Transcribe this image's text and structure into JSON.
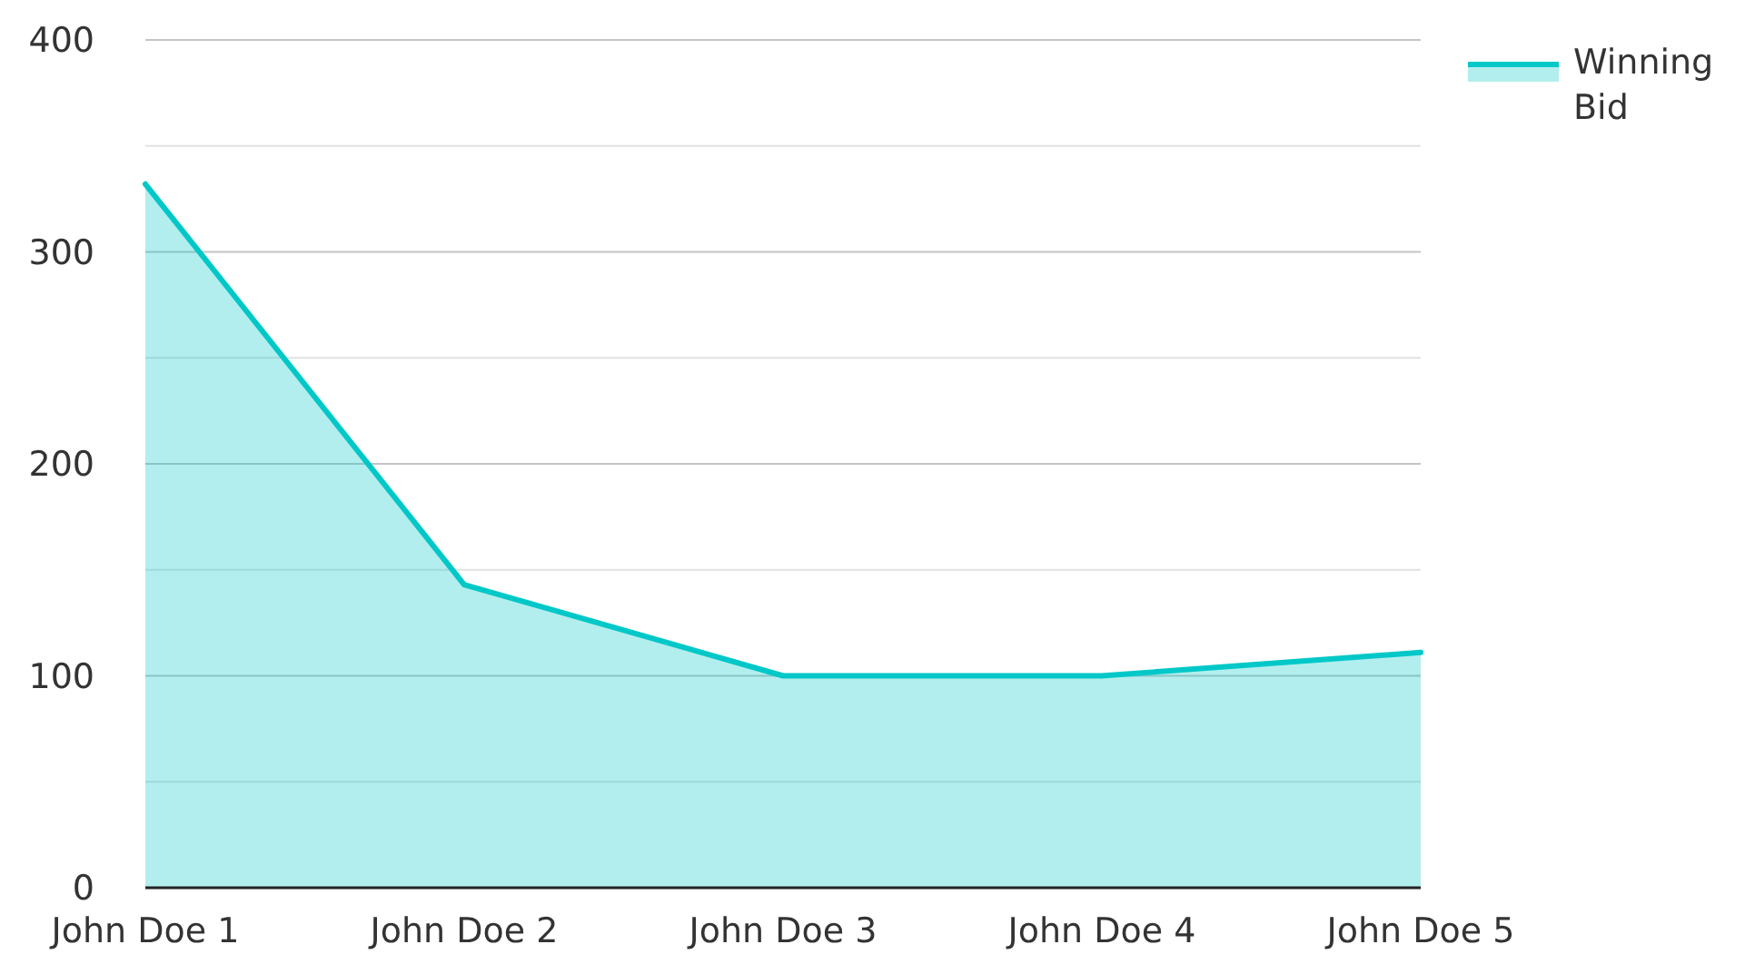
{
  "chart_data": {
    "type": "area",
    "categories": [
      "John Doe 1",
      "John Doe 2",
      "John Doe 3",
      "John Doe 4",
      "John Doe 5"
    ],
    "series": [
      {
        "name": "Winning Bid",
        "color": "#00c8c8",
        "values": [
          332,
          143,
          100,
          100,
          111
        ]
      }
    ],
    "ylim": [
      0,
      400
    ],
    "yticks": [
      0,
      {
        "value": 50,
        "label": null
      },
      100,
      {
        "value": 150,
        "label": null
      },
      200,
      {
        "value": 250,
        "label": null
      },
      300,
      {
        "value": 350,
        "label": null
      },
      400
    ],
    "grid": "y",
    "legend": "top right"
  }
}
